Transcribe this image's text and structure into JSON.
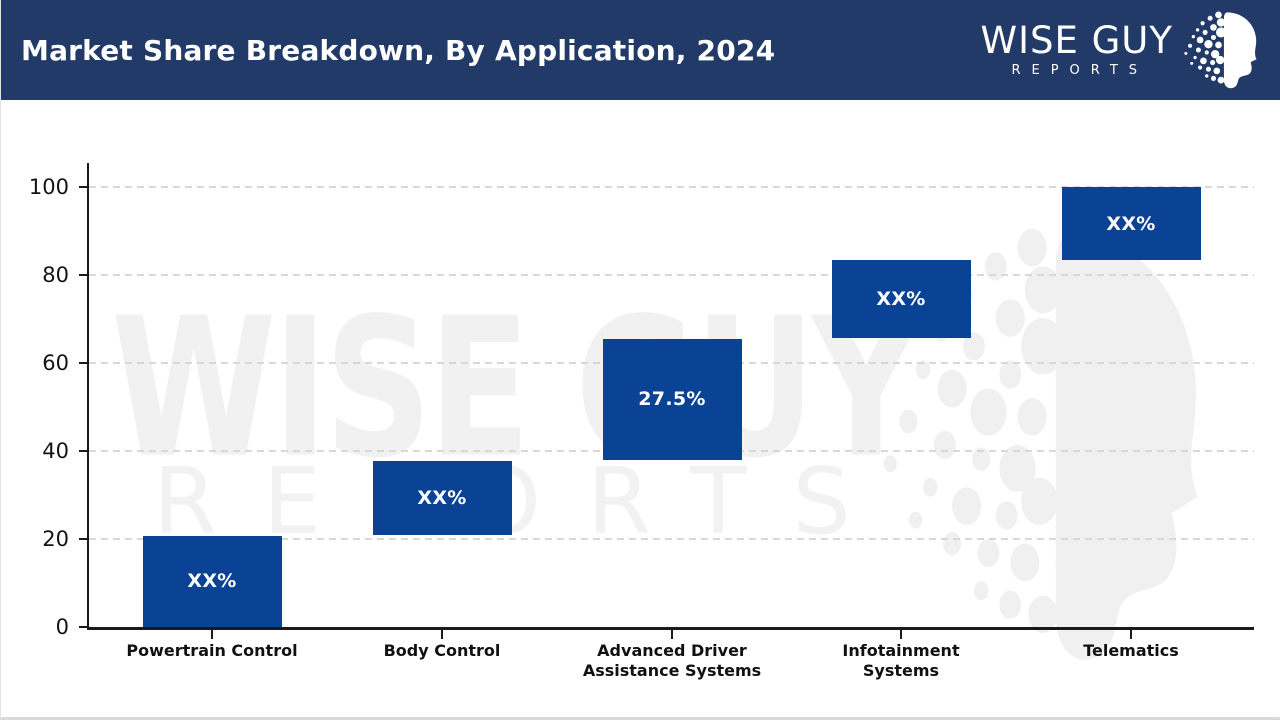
{
  "header": {
    "title": "Market Share Breakdown, By Application, 2024",
    "bg_color": "#223A68",
    "logo": {
      "line1": "WISE GUY",
      "line2": "REPORTS"
    }
  },
  "watermark": {
    "line1": "WISE GUY",
    "line2": "REPORTS"
  },
  "chart_data": {
    "type": "bar",
    "variant": "waterfall",
    "title": "Market Share Breakdown, By Application, 2024",
    "categories": [
      "Powertrain Control",
      "Body Control",
      "Advanced Driver\nAssistance Systems",
      "Infotainment\nSystems",
      "Telematics"
    ],
    "segments": [
      {
        "category": "Powertrain Control",
        "start": 0,
        "end": 20.7,
        "label": "XX%"
      },
      {
        "category": "Body Control",
        "start": 20.9,
        "end": 37.8,
        "label": "XX%"
      },
      {
        "category": "Advanced Driver Assistance Systems",
        "start": 38.0,
        "end": 65.5,
        "label": "27.5%"
      },
      {
        "category": "Infotainment Systems",
        "start": 65.6,
        "end": 83.3,
        "label": "XX%"
      },
      {
        "category": "Telematics",
        "start": 83.4,
        "end": 100.0,
        "label": "XX%"
      }
    ],
    "y_ticks": [
      0,
      20,
      40,
      60,
      80,
      100
    ],
    "ylim": [
      0,
      105
    ],
    "xlabel": "",
    "ylabel": "",
    "grid": true,
    "gridline_color": "#d8d8d8",
    "gridline_style": "dashed",
    "bar_color": "#0A4396",
    "bar_label_color": "#ffffff",
    "axis_color": "#1a1a1a",
    "legend": "none"
  }
}
